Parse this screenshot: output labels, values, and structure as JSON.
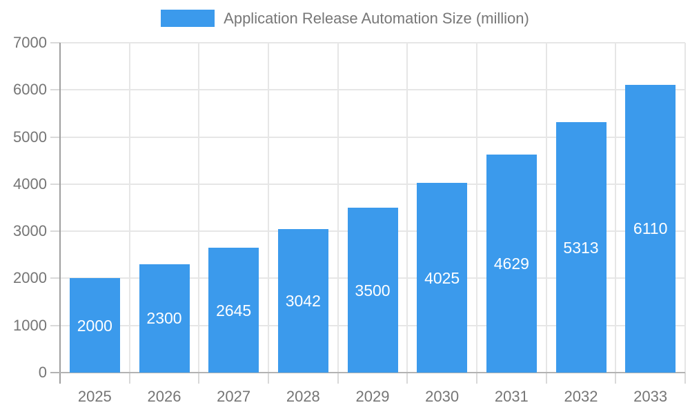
{
  "chart_data": {
    "type": "bar",
    "title": "Application Release Automation Size (million)",
    "categories": [
      "2025",
      "2026",
      "2027",
      "2028",
      "2029",
      "2030",
      "2031",
      "2032",
      "2033"
    ],
    "values": [
      2000,
      2300,
      2645,
      3042,
      3500,
      4025,
      4629,
      5313,
      6110
    ],
    "xlabel": "",
    "ylabel": "",
    "ylim": [
      0,
      7000
    ],
    "ytick_step": 1000,
    "y_tick_labels": [
      "0",
      "1000",
      "2000",
      "3000",
      "4000",
      "5000",
      "6000",
      "7000"
    ],
    "grid": true,
    "legend_position": "top-center",
    "bar_labels_inside": true
  },
  "colors": {
    "bar": "#3b9aec",
    "bar_label_text": "#ffffff",
    "grid": "#e6e6e6",
    "tick": "#d9d9d9",
    "x_axis_line": "#b3b3b3",
    "y_axis_line": "#9e9e9e",
    "axis_text": "#757575",
    "legend_text": "#777777",
    "background": "#ffffff"
  }
}
